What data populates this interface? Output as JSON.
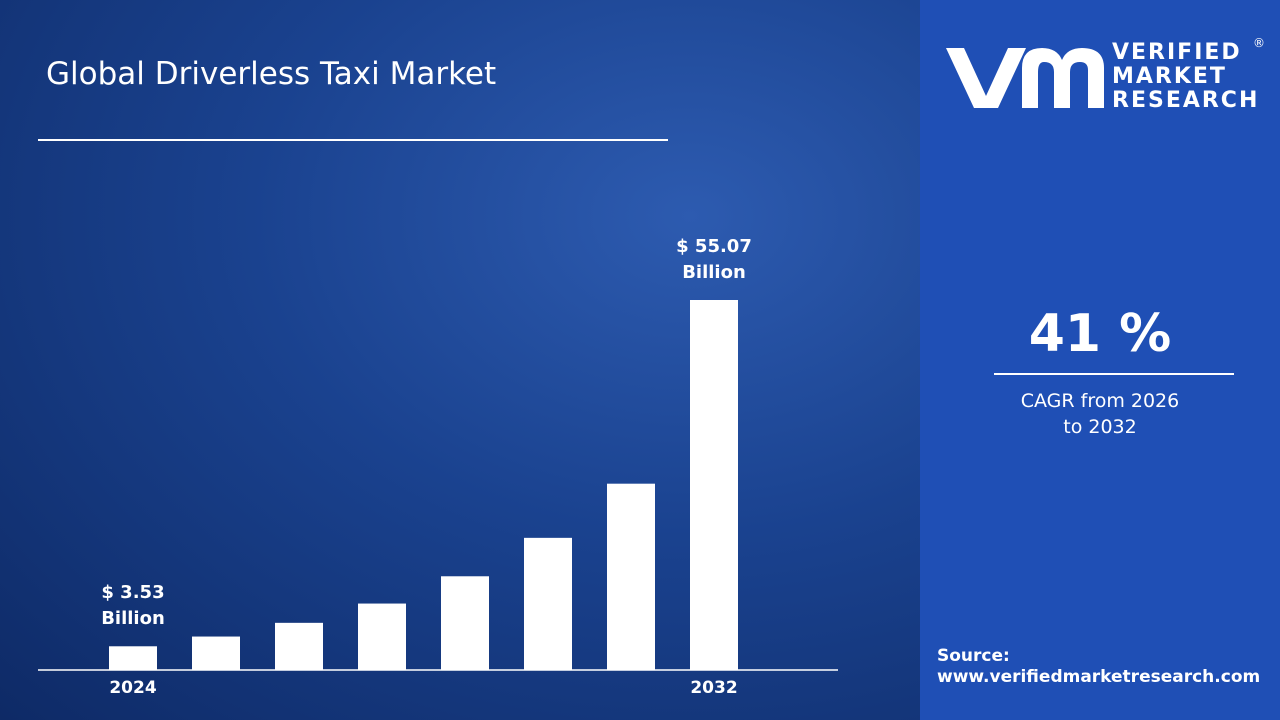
{
  "title": "Global Driverless Taxi Market",
  "chart_data": {
    "type": "bar",
    "categories": [
      "2024",
      null,
      null,
      null,
      null,
      null,
      null,
      "2032"
    ],
    "values": [
      3.53,
      4.98,
      7.02,
      9.89,
      13.95,
      19.67,
      27.73,
      55.07
    ],
    "value_labels": [
      "$ 3.53 Billion",
      null,
      null,
      null,
      null,
      null,
      null,
      "$ 55.07 Billion"
    ],
    "color": "#ffffff"
  },
  "cagr": {
    "value": "41 %",
    "label": "CAGR from 2026 to 2032"
  },
  "source": {
    "label": "Source:",
    "url": "www.verifiedmarketresearch.com"
  },
  "logo": {
    "line1": "VERIFIED",
    "line2": "MARKET",
    "line3": "RESEARCH",
    "mark": "®"
  }
}
